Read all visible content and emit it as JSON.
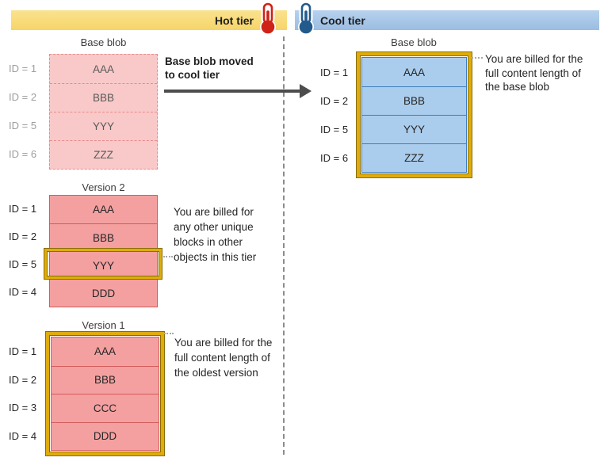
{
  "header": {
    "hot": {
      "label": "Hot tier",
      "icon": "thermometer-hot-icon"
    },
    "cool": {
      "label": "Cool tier",
      "icon": "thermometer-cool-icon"
    }
  },
  "tables": {
    "hot_base": {
      "title": "Base blob",
      "style": "faded-dashed-pink",
      "rows": [
        {
          "id": "ID = 1",
          "block": "AAA"
        },
        {
          "id": "ID = 2",
          "block": "BBB"
        },
        {
          "id": "ID = 5",
          "block": "YYY"
        },
        {
          "id": "ID = 6",
          "block": "ZZZ"
        }
      ]
    },
    "hot_v2": {
      "title": "Version 2",
      "style": "solid-pink",
      "highlighted_row_id": "ID = 5",
      "highlighted_block": "YYY",
      "rows": [
        {
          "id": "ID = 1",
          "block": "AAA"
        },
        {
          "id": "ID = 2",
          "block": "BBB"
        },
        {
          "id": "ID = 5",
          "block": "YYY"
        },
        {
          "id": "ID = 4",
          "block": "DDD"
        }
      ]
    },
    "hot_v1": {
      "title": "Version 1",
      "style": "solid-pink",
      "highlighted": "entire-table",
      "rows": [
        {
          "id": "ID = 1",
          "block": "AAA"
        },
        {
          "id": "ID = 2",
          "block": "BBB"
        },
        {
          "id": "ID = 3",
          "block": "CCC"
        },
        {
          "id": "ID = 4",
          "block": "DDD"
        }
      ]
    },
    "cool_base": {
      "title": "Base blob",
      "style": "solid-blue",
      "highlighted": "entire-table",
      "rows": [
        {
          "id": "ID = 1",
          "block": "AAA"
        },
        {
          "id": "ID = 2",
          "block": "BBB"
        },
        {
          "id": "ID = 5",
          "block": "YYY"
        },
        {
          "id": "ID = 6",
          "block": "ZZZ"
        }
      ]
    }
  },
  "annotations": {
    "arrow_label": [
      "Base blob moved",
      "to cool tier"
    ],
    "cool_base_note": [
      "You are billed for the",
      "full content length of",
      "the base blob"
    ],
    "hot_v2_note": [
      "You are billed for",
      "any other unique",
      "blocks in other",
      "objects in this tier"
    ],
    "hot_v1_note": [
      "You are billed for the",
      "full content length of",
      "the oldest version"
    ]
  },
  "colors": {
    "hot_bar": "#F8DB7A",
    "cool_bar": "#A7C6E7",
    "hot_icon": "#CF2318",
    "cool_icon": "#235A8C",
    "pink_fill": "#F4A0A0",
    "pink_border": "#D25C5C",
    "faded_fill": "#F9C9C9",
    "faded_border": "#E98A8A",
    "blue_fill": "#ABCDED",
    "blue_border": "#3E7EBD",
    "gold": "#DFAC0C",
    "gold_dark": "#8A6D00",
    "text_dark": "#262626",
    "text_muted": "#9E9E9E",
    "arrow": "#4D4D4D",
    "separator": "#8C8C8C"
  }
}
